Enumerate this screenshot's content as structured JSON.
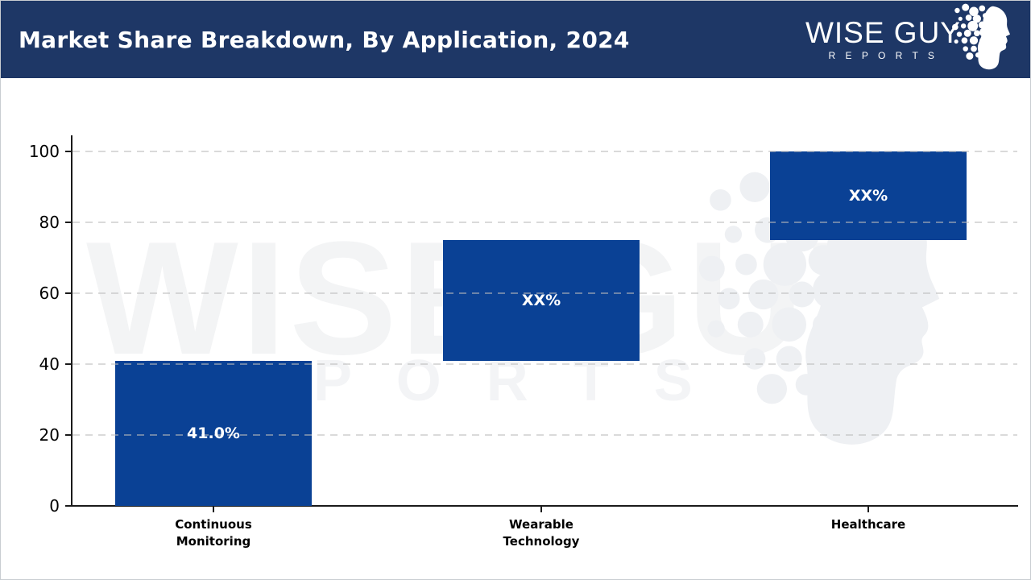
{
  "header": {
    "title": "Market Share Breakdown, By Application, 2024",
    "logo": {
      "line1": "WISE GUY",
      "line2": "R E P O R T S"
    }
  },
  "watermark": {
    "line1": "WISE GUY",
    "line2": "R E P O R T S"
  },
  "chart_data": {
    "type": "bar",
    "subtype": "waterfall",
    "title": "Market Share Breakdown, By Application, 2024",
    "categories": [
      "Continuous Monitoring",
      "Wearable Technology",
      "Healthcare"
    ],
    "categories_lines": [
      [
        "Continuous",
        "Monitoring"
      ],
      [
        "Wearable",
        "Technology"
      ],
      [
        "Healthcare",
        ""
      ]
    ],
    "segments": [
      {
        "category": "Continuous Monitoring",
        "start": 0,
        "end": 41,
        "label": "41.0%"
      },
      {
        "category": "Wearable Technology",
        "start": 41,
        "end": 75,
        "label": "XX%"
      },
      {
        "category": "Healthcare",
        "start": 75,
        "end": 100,
        "label": "XX%"
      }
    ],
    "yticks": [
      0,
      20,
      40,
      60,
      80,
      100
    ],
    "ylim": [
      0,
      100
    ],
    "grid": "dashed-horizontal",
    "legend": "none",
    "colors": {
      "bar": "#0a4195",
      "header": "#1e3766",
      "grid": "#d6d6d6",
      "axis": "#1a1a1a"
    }
  }
}
